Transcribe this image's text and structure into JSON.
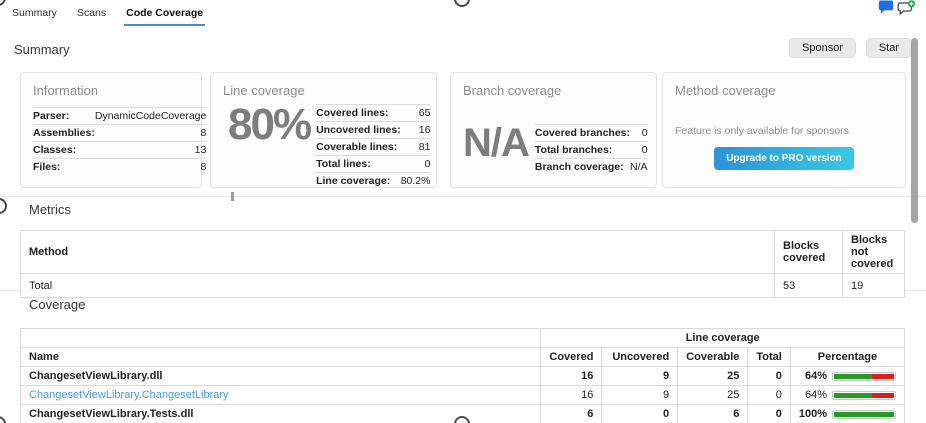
{
  "tabs": {
    "items": [
      {
        "label": "Summary",
        "active": false
      },
      {
        "label": "Scans",
        "active": false
      },
      {
        "label": "Code Coverage",
        "active": true
      }
    ]
  },
  "topbar_icons": {
    "chat": "chat-bubble-icon",
    "add_chat": "add-comment-icon"
  },
  "summary_section": {
    "title": "Summary",
    "sponsor_button": "Sponsor",
    "star_button": "Star"
  },
  "cards": {
    "information": {
      "title": "Information",
      "rows": [
        {
          "label": "Parser:",
          "value": "DynamicCodeCoverage"
        },
        {
          "label": "Assemblies:",
          "value": "8"
        },
        {
          "label": "Classes:",
          "value": "13"
        },
        {
          "label": "Files:",
          "value": "8"
        }
      ]
    },
    "line_coverage": {
      "title": "Line coverage",
      "big_value": "80%",
      "rows": [
        {
          "label": "Covered lines:",
          "value": "65"
        },
        {
          "label": "Uncovered lines:",
          "value": "16"
        },
        {
          "label": "Coverable lines:",
          "value": "81"
        },
        {
          "label": "Total lines:",
          "value": "0"
        },
        {
          "label": "Line coverage:",
          "value": "80.2%"
        }
      ]
    },
    "branch_coverage": {
      "title": "Branch coverage",
      "big_value": "N/A",
      "rows": [
        {
          "label": "Covered branches:",
          "value": "0"
        },
        {
          "label": "Total branches:",
          "value": "0"
        },
        {
          "label": "Branch coverage:",
          "value": "N/A"
        }
      ]
    },
    "method_coverage": {
      "title": "Method coverage",
      "note": "Feature is only available for sponsors",
      "upgrade_button": "Upgrade to PRO version"
    }
  },
  "metrics": {
    "title": "Metrics",
    "columns": [
      "Method",
      "Blocks covered",
      "Blocks not covered"
    ],
    "rows": [
      {
        "method": "Total",
        "blocks_covered": "53",
        "blocks_not_covered": "19"
      }
    ]
  },
  "coverage": {
    "title": "Coverage",
    "group_header": "Line coverage",
    "columns": [
      "Name",
      "Covered",
      "Uncovered",
      "Coverable",
      "Total",
      "Percentage"
    ],
    "rows": [
      {
        "name": "ChangesetViewLibrary.dll",
        "covered": "16",
        "uncovered": "9",
        "coverable": "25",
        "total": "0",
        "percentage": "64%",
        "percent": 64,
        "bold": true,
        "link": false
      },
      {
        "name": "ChangesetViewLibrary.ChangesetLibrary",
        "covered": "16",
        "uncovered": "9",
        "coverable": "25",
        "total": "0",
        "percentage": "64%",
        "percent": 64,
        "bold": false,
        "link": true
      },
      {
        "name": "ChangesetViewLibrary.Tests.dll",
        "covered": "6",
        "uncovered": "0",
        "coverable": "6",
        "total": "0",
        "percentage": "100%",
        "percent": 100,
        "bold": true,
        "link": false
      }
    ]
  },
  "colors": {
    "accent_blue": "#3e8ee0",
    "link_blue": "#4798e8",
    "bar_green": "#259a25",
    "bar_red": "#dd1c1c",
    "button_gradient_start": "#2c93d8",
    "button_gradient_end": "#36c9e5",
    "big_number_gray": "#7d7d7d"
  }
}
